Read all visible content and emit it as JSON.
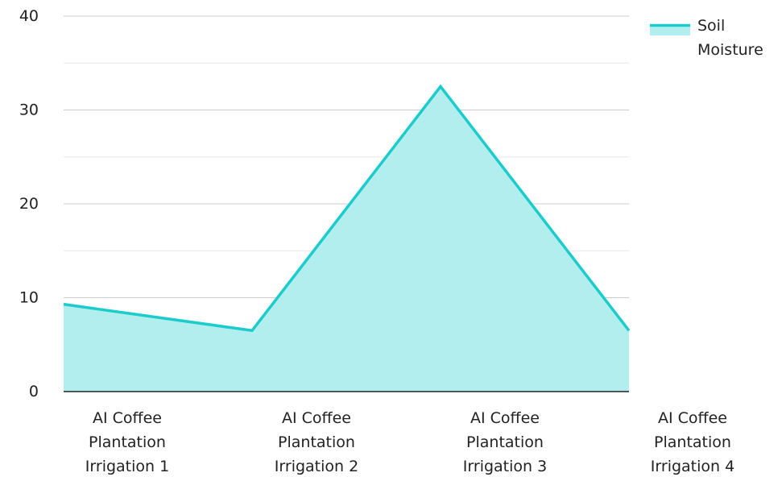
{
  "chart_data": {
    "type": "area",
    "title": "",
    "xlabel": "",
    "ylabel": "",
    "categories": [
      [
        "AI Coffee",
        "Plantation",
        "Irrigation 1"
      ],
      [
        "AI Coffee",
        "Plantation",
        "Irrigation 2"
      ],
      [
        "AI Coffee",
        "Plantation",
        "Irrigation 3"
      ],
      [
        "AI Coffee",
        "Plantation",
        "Irrigation 4"
      ]
    ],
    "series": [
      {
        "name": "Soil Moisture",
        "values": [
          9.3,
          6.5,
          32.5,
          6.5
        ],
        "color": "#1ccccc",
        "fill": "#b2eeee"
      }
    ],
    "ylim": [
      0,
      40
    ],
    "yticks": [
      0,
      10,
      20,
      30,
      40
    ],
    "grid": true,
    "legend": {
      "position": "top-right",
      "lines": [
        "Soil",
        "Moisture"
      ]
    }
  }
}
